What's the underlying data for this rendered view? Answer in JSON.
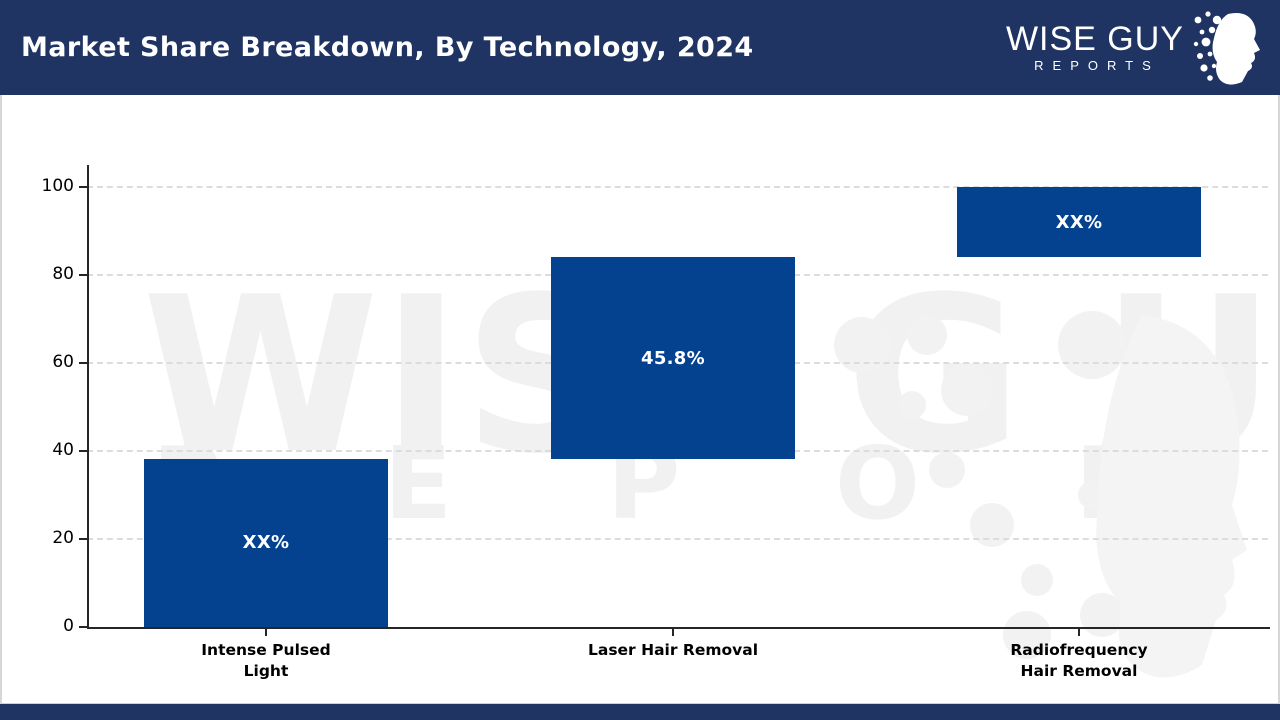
{
  "header": {
    "title": "Market Share Breakdown, By Technology, 2024",
    "logo": {
      "name": "WISE GUY",
      "sub": "REPORTS"
    }
  },
  "watermark": {
    "line1": "WISE G U Y",
    "line2": "R E P O R T S"
  },
  "chart_data": {
    "type": "bar",
    "subtype": "waterfall",
    "title": "Market Share Breakdown, By Technology, 2024",
    "xlabel": "",
    "ylabel": "",
    "categories": [
      "Intense Pulsed\nLight",
      "Laser Hair Removal",
      "Radiofrequency\nHair Removal"
    ],
    "series": [
      {
        "name": "Intense Pulsed Light",
        "start": 0,
        "end": 38.2,
        "label": "XX%"
      },
      {
        "name": "Laser Hair Removal",
        "start": 38.2,
        "end": 84,
        "label": "45.8%"
      },
      {
        "name": "Radiofrequency Hair Removal",
        "start": 84,
        "end": 100,
        "label": "XX%"
      }
    ],
    "yticks": [
      0,
      20,
      40,
      60,
      80,
      100
    ],
    "ylim": [
      0,
      105
    ],
    "grid": "horizontal-dashed",
    "legend": "none",
    "bar_color": "#04428f",
    "bar_label_color": "#ffffff"
  },
  "colors": {
    "header_bg": "#1f3463",
    "footer_bg": "#1f3463",
    "bar": "#04428f",
    "grid": "#dcdcdc",
    "axis": "#262626",
    "watermark": "#f1f1f1"
  }
}
